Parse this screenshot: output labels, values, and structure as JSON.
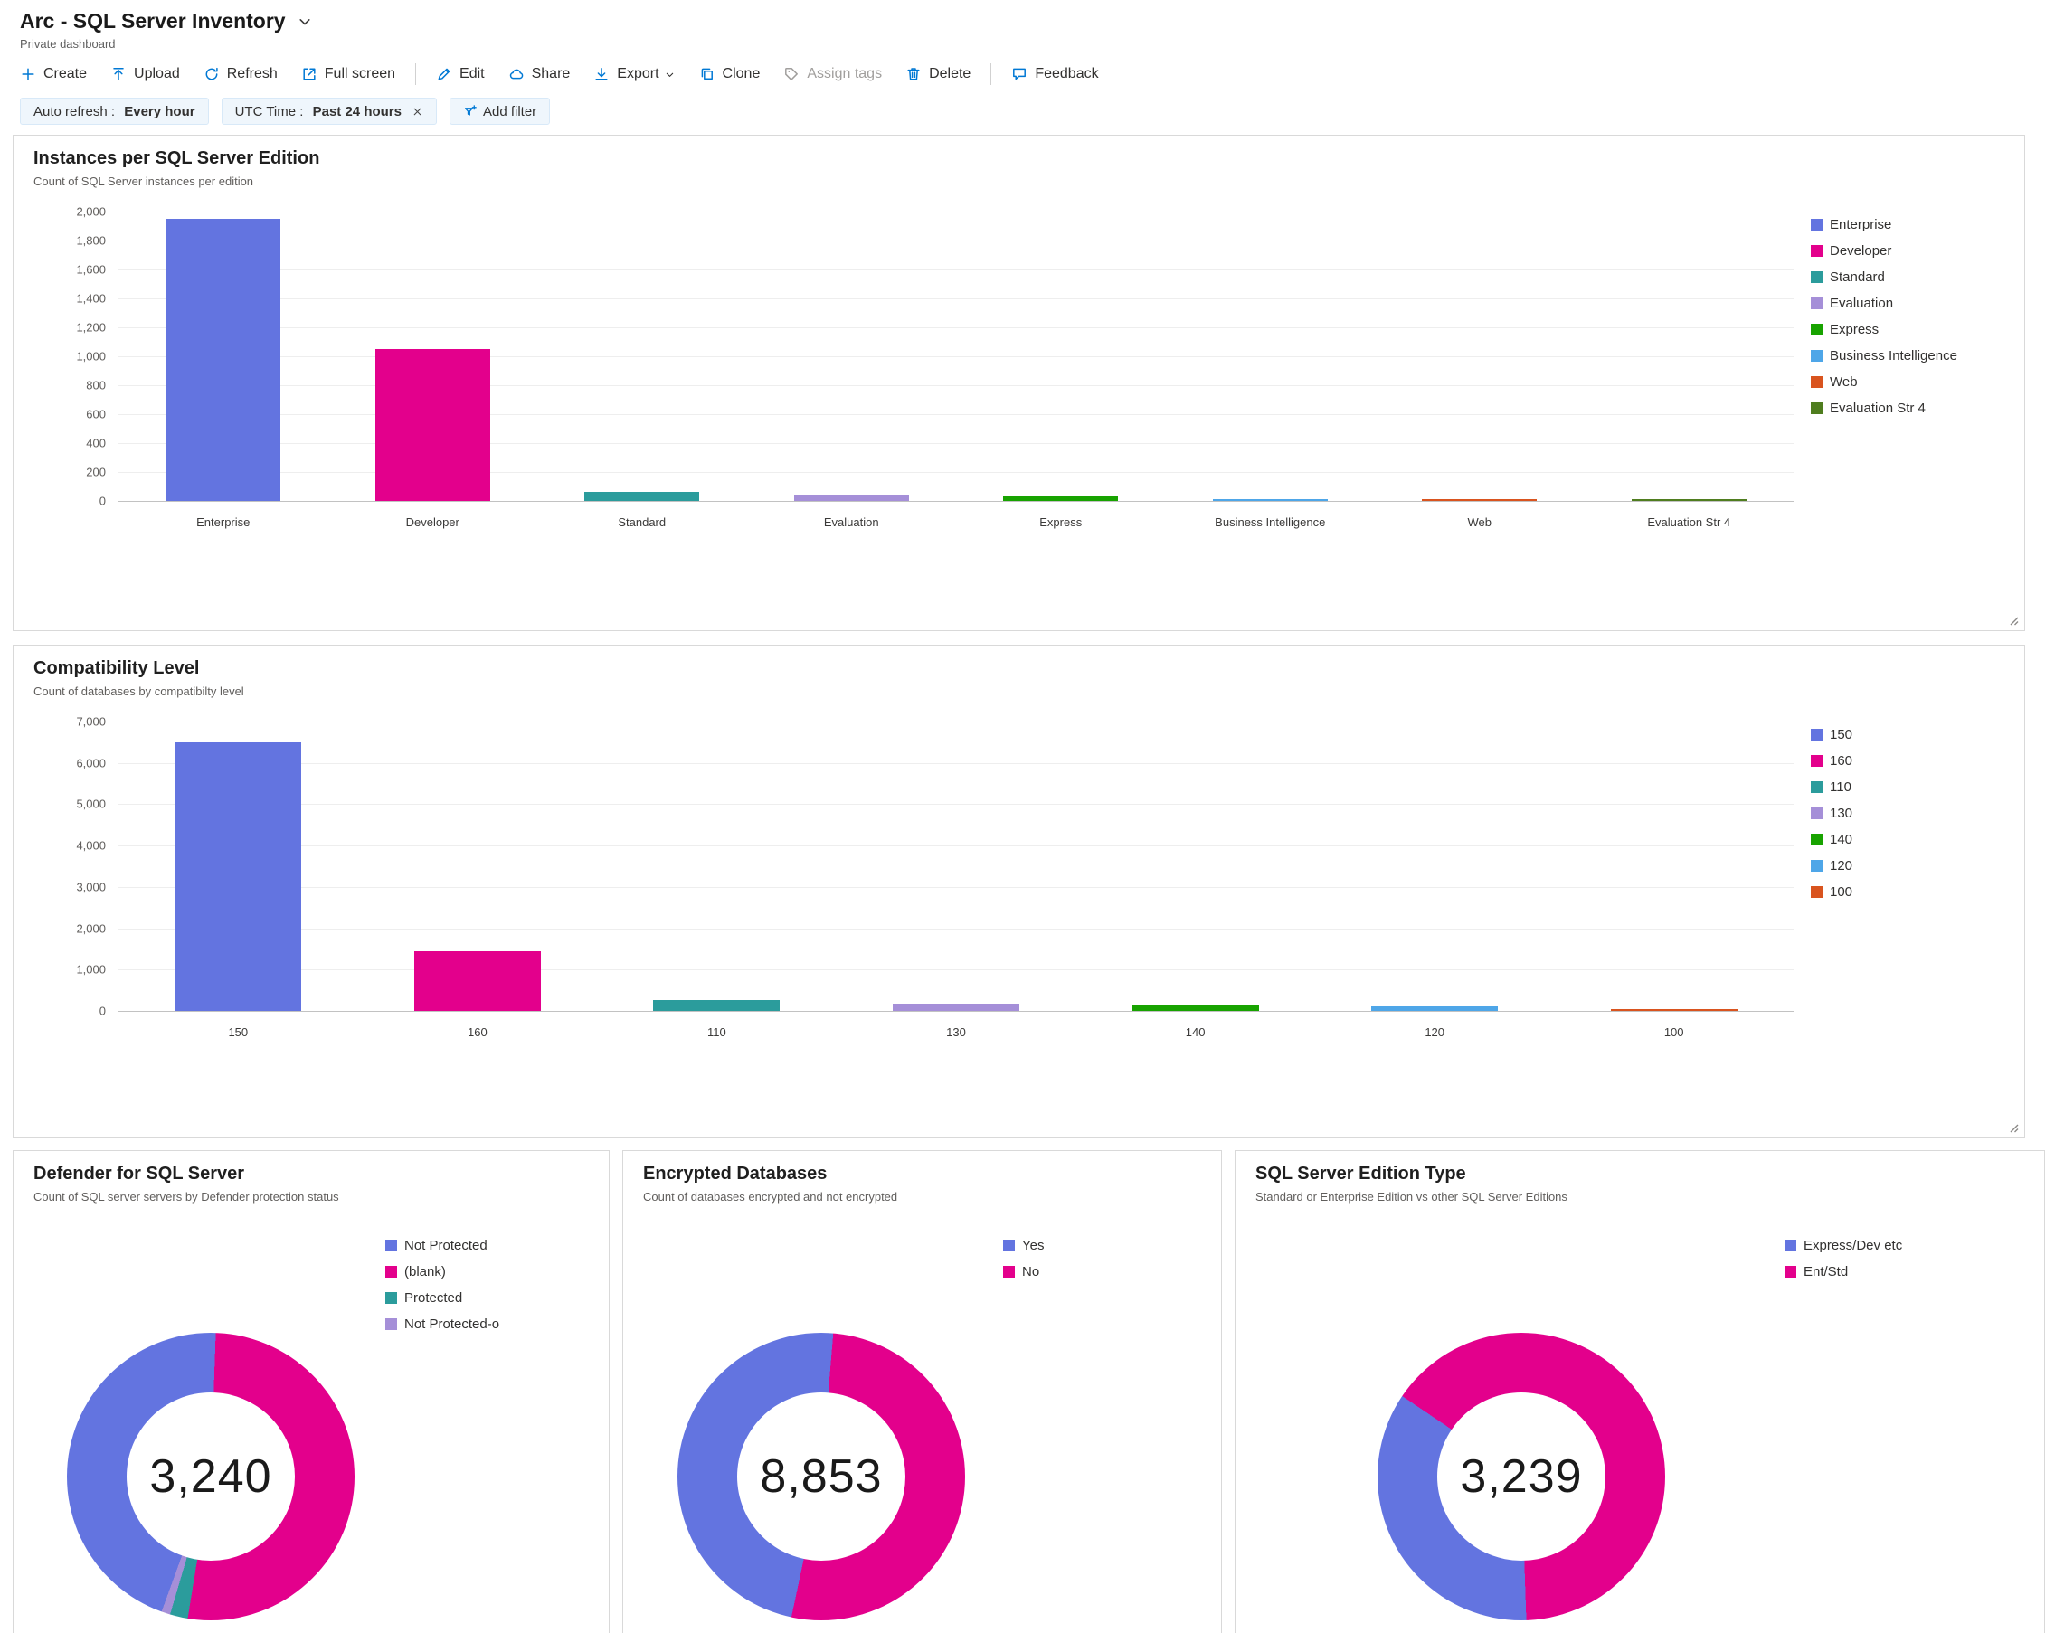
{
  "page": {
    "title": "Arc - SQL Server Inventory",
    "subtitle": "Private dashboard"
  },
  "toolbar": {
    "items": [
      {
        "label": "Create",
        "icon": "plus-icon",
        "enabled": true
      },
      {
        "label": "Upload",
        "icon": "upload-icon",
        "enabled": true
      },
      {
        "label": "Refresh",
        "icon": "refresh-icon",
        "enabled": true
      },
      {
        "label": "Full screen",
        "icon": "fullscreen-icon",
        "enabled": true,
        "divider_after": true
      },
      {
        "label": "Edit",
        "icon": "edit-icon",
        "enabled": true
      },
      {
        "label": "Share",
        "icon": "share-icon",
        "enabled": true
      },
      {
        "label": "Export",
        "icon": "export-icon",
        "enabled": true,
        "has_chevron": true
      },
      {
        "label": "Clone",
        "icon": "clone-icon",
        "enabled": true
      },
      {
        "label": "Assign tags",
        "icon": "tag-icon",
        "enabled": false
      },
      {
        "label": "Delete",
        "icon": "delete-icon",
        "enabled": true,
        "divider_after": true
      },
      {
        "label": "Feedback",
        "icon": "feedback-icon",
        "enabled": true
      }
    ]
  },
  "filters": {
    "pills": [
      {
        "label": "Auto refresh :",
        "value": "Every hour",
        "closable": false
      },
      {
        "label": "UTC Time :",
        "value": "Past 24 hours",
        "closable": true
      }
    ],
    "add_filter_label": "Add filter"
  },
  "chart_data": [
    {
      "type": "bar",
      "title": "Instances per SQL Server Edition",
      "subtitle": "Count of SQL Server instances per edition",
      "categories": [
        "Enterprise",
        "Developer",
        "Standard",
        "Evaluation",
        "Express",
        "Business Intelligence",
        "Web",
        "Evaluation Str 4"
      ],
      "values": [
        1950,
        1050,
        60,
        45,
        40,
        10,
        8,
        5
      ],
      "colors": [
        "#6374e0",
        "#e3008c",
        "#2b9c9c",
        "#a58fd8",
        "#18a300",
        "#4ea6e8",
        "#d9541f",
        "#4f7d1f"
      ],
      "xlabel": "",
      "ylabel": "",
      "ylim": [
        0,
        2000
      ],
      "ytick_step": 200,
      "grid": true,
      "legend_position": "right",
      "legend": [
        "Enterprise",
        "Developer",
        "Standard",
        "Evaluation",
        "Express",
        "Business Intelligence",
        "Web",
        "Evaluation Str 4"
      ]
    },
    {
      "type": "bar",
      "title": "Compatibility Level",
      "subtitle": "Count of databases by compatibilty level",
      "categories": [
        "150",
        "160",
        "110",
        "130",
        "140",
        "120",
        "100"
      ],
      "values": [
        6500,
        1450,
        260,
        170,
        140,
        120,
        40
      ],
      "colors": [
        "#6374e0",
        "#e3008c",
        "#2b9c9c",
        "#a58fd8",
        "#18a300",
        "#4ea6e8",
        "#d9541f"
      ],
      "xlabel": "",
      "ylabel": "",
      "ylim": [
        0,
        7000
      ],
      "ytick_step": 1000,
      "grid": true,
      "legend_position": "right",
      "legend": [
        "150",
        "160",
        "110",
        "130",
        "140",
        "120",
        "100"
      ]
    },
    {
      "type": "pie",
      "title": "Defender for SQL Server",
      "subtitle": "Count of SQL server servers by Defender protection status",
      "center_label": "3,240",
      "total": 3240,
      "start_angle": 200,
      "legend_position": "right",
      "slices": [
        {
          "label": "Not Protected",
          "value": 1458,
          "color": "#6374e0"
        },
        {
          "label": "(blank)",
          "value": 1685,
          "color": "#e3008c"
        },
        {
          "label": "Protected",
          "value": 65,
          "color": "#2b9c9c"
        },
        {
          "label": "Not Protected-o",
          "value": 32,
          "color": "#a58fd8"
        }
      ]
    },
    {
      "type": "pie",
      "title": "Encrypted Databases",
      "subtitle": "Count of databases encrypted and not encrypted",
      "center_label": "8,853",
      "total": 8853,
      "start_angle": 192,
      "legend_position": "right",
      "slices": [
        {
          "label": "Yes",
          "value": 4249,
          "color": "#6374e0"
        },
        {
          "label": "No",
          "value": 4604,
          "color": "#e3008c"
        }
      ]
    },
    {
      "type": "pie",
      "title": "SQL Server Edition Type",
      "subtitle": "Standard or Enterprise Edition vs other SQL Server Editions",
      "center_label": "3,239",
      "total": 3239,
      "start_angle": 178,
      "legend_position": "right",
      "slices": [
        {
          "label": "Express/Dev etc",
          "value": 1134,
          "color": "#6374e0"
        },
        {
          "label": "Ent/Std",
          "value": 2105,
          "color": "#e3008c"
        }
      ]
    }
  ]
}
